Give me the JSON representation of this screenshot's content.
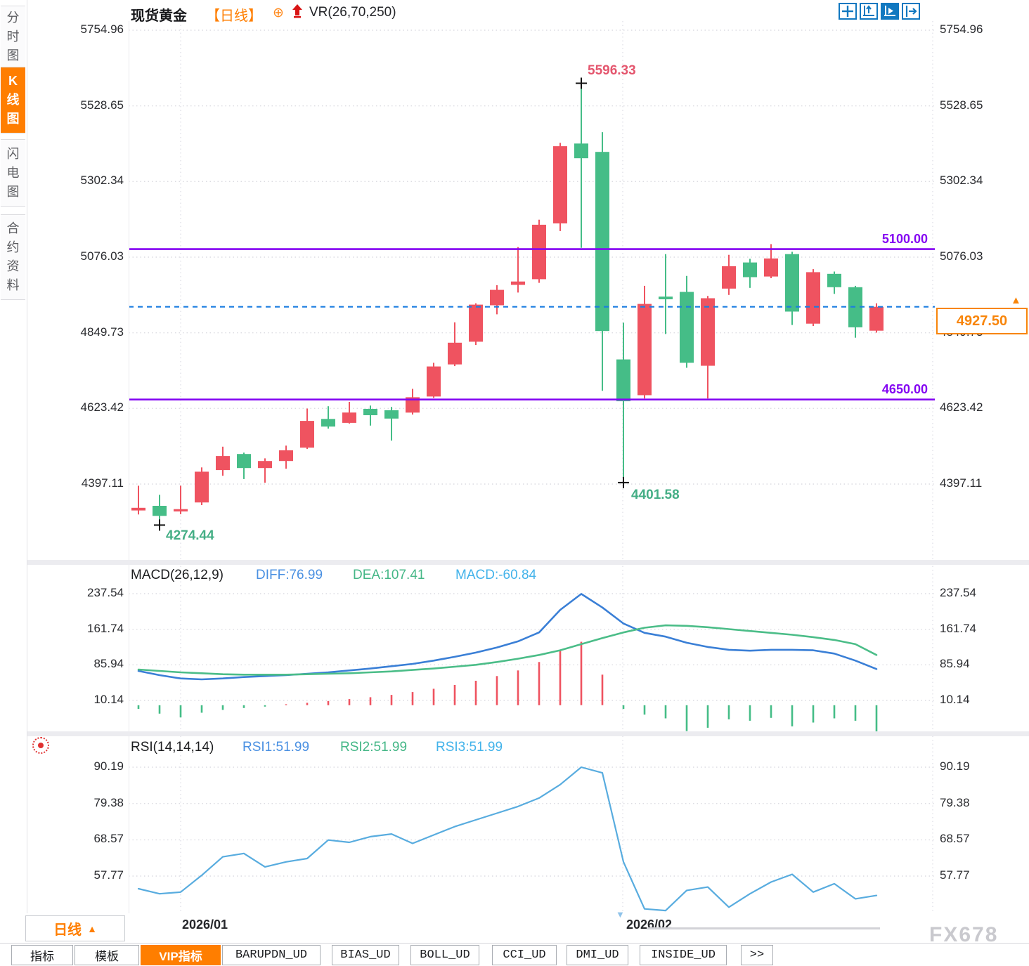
{
  "title": {
    "symbol": "现货黄金",
    "period": "【日线】",
    "overlay": "VR(26,70,250)"
  },
  "sidebar": {
    "items": [
      {
        "label": "分时图",
        "active": false
      },
      {
        "label": "K线图",
        "active": true
      },
      {
        "label": "闪电图",
        "active": false
      },
      {
        "label": "合约资料",
        "active": false
      }
    ]
  },
  "toolbar": {
    "icons": [
      "move-crosshair-icon",
      "axis-scale-icon",
      "axis-play-icon",
      "pane-export-icon"
    ]
  },
  "price_axis": {
    "labels": [
      "5754.96",
      "5528.65",
      "5302.34",
      "5076.03",
      "4849.73",
      "4623.42",
      "4397.11"
    ]
  },
  "levels": {
    "resistance": {
      "label": "5100.00",
      "price": 5100.0
    },
    "support": {
      "label": "4650.00",
      "price": 4650.0
    },
    "current": {
      "label": "4927.50",
      "price": 4927.5
    }
  },
  "annotations": {
    "high": {
      "text": "5596.33",
      "price": 5596.33
    },
    "low": {
      "text": "4274.44",
      "price": 4274.44
    },
    "swing_low": {
      "text": "4401.58",
      "price": 4401.58
    }
  },
  "macd_panel": {
    "name": "MACD(26,12,9)",
    "diff_label": "DIFF:76.99",
    "dea_label": "DEA:107.41",
    "macd_label": "MACD:-60.84",
    "axis_labels": [
      "237.54",
      "161.74",
      "85.94",
      "10.14"
    ]
  },
  "rsi_panel": {
    "name": "RSI(14,14,14)",
    "rsi1_label": "RSI1:51.99",
    "rsi2_label": "RSI2:51.99",
    "rsi3_label": "RSI3:51.99",
    "axis_labels": [
      "90.19",
      "79.38",
      "68.57",
      "57.77"
    ]
  },
  "x_axis": {
    "labels": [
      "2026/01",
      "2026/02"
    ]
  },
  "period_button": {
    "label": "日线"
  },
  "bottom_tabs": [
    {
      "label": "指标",
      "active": false,
      "cn": true
    },
    {
      "label": "模板",
      "active": false,
      "cn": true
    },
    {
      "label": "VIP指标",
      "active": true,
      "cn": true
    },
    {
      "label": "BARUPDN_UD",
      "active": false,
      "cn": false
    },
    {
      "label": "BIAS_UD",
      "active": false,
      "cn": false
    },
    {
      "label": "BOLL_UD",
      "active": false,
      "cn": false
    },
    {
      "label": "CCI_UD",
      "active": false,
      "cn": false
    },
    {
      "label": "DMI_UD",
      "active": false,
      "cn": false
    },
    {
      "label": "INSIDE_UD",
      "active": false,
      "cn": false
    },
    {
      "label": ">>",
      "active": false,
      "cn": false
    }
  ],
  "watermark": "FX678",
  "colors": {
    "up": "#ef5360",
    "down": "#45bd87",
    "level_purple": "#8405f2",
    "current_dashed_blue": "#1b7de0",
    "accent_orange": "#ff7e00",
    "diff_blue": "#3a7fd6",
    "dea_green": "#4bbd88",
    "rsi_blue": "#58acdf",
    "grid": "#dcdce2"
  },
  "chart_data": [
    {
      "type": "candlestick",
      "title": "现货黄金 日线",
      "up_color_meaning": "red=up, green=down",
      "y_ticks": [
        5754.96,
        5528.65,
        5302.34,
        5076.03,
        4849.73,
        4623.42,
        4397.11
      ],
      "x_tick_labels": [
        "2026/01",
        "2026/02"
      ],
      "levels": [
        5100.0,
        4650.0
      ],
      "current_price": 4927.5,
      "marked_high": 5596.33,
      "marked_low": 4274.44,
      "marked_swing_low": 4401.58,
      "candles_ohlc": [
        [
          4318,
          4392,
          4306,
          4326
        ],
        [
          4332,
          4365,
          4274.44,
          4302
        ],
        [
          4315,
          4392,
          4307,
          4322
        ],
        [
          4342,
          4447,
          4334,
          4434
        ],
        [
          4439,
          4509,
          4422,
          4481
        ],
        [
          4487,
          4491,
          4412,
          4445
        ],
        [
          4445,
          4474,
          4401,
          4466
        ],
        [
          4466,
          4512,
          4443,
          4498
        ],
        [
          4506,
          4623,
          4502,
          4586
        ],
        [
          4592,
          4630,
          4563,
          4569
        ],
        [
          4580,
          4643,
          4578,
          4611
        ],
        [
          4622,
          4632,
          4572,
          4603
        ],
        [
          4618,
          4628,
          4527,
          4593
        ],
        [
          4611,
          4682,
          4605,
          4657
        ],
        [
          4659,
          4760,
          4655,
          4749
        ],
        [
          4755,
          4881,
          4750,
          4820
        ],
        [
          4823,
          4938,
          4813,
          4934
        ],
        [
          4932,
          4992,
          4905,
          4978
        ],
        [
          4993,
          5106,
          4970,
          5003
        ],
        [
          5010,
          5188,
          4999,
          5173
        ],
        [
          5177,
          5418,
          5154,
          5408
        ],
        [
          5416,
          5596.33,
          5104,
          5372
        ],
        [
          5391,
          5450,
          4676,
          4855
        ],
        [
          4770,
          4880,
          4401.58,
          4645
        ],
        [
          4663,
          4990,
          4653,
          4936
        ],
        [
          4958,
          5085,
          4846,
          4950
        ],
        [
          4972,
          5020,
          4745,
          4760
        ],
        [
          4751,
          4960,
          4653,
          4953
        ],
        [
          4982,
          5083,
          4963,
          5049
        ],
        [
          5060,
          5071,
          4984,
          5016
        ],
        [
          5018,
          5115,
          5013,
          5072
        ],
        [
          5085,
          5092,
          4873,
          4913
        ],
        [
          4877,
          5040,
          4870,
          5031
        ],
        [
          5026,
          5033,
          4966,
          4986
        ],
        [
          4986,
          4990,
          4835,
          4866
        ],
        [
          4856,
          4938,
          4850,
          4927.5
        ]
      ]
    },
    {
      "type": "macd",
      "name": "MACD(26,12,9)",
      "y_ticks": [
        237.54,
        161.74,
        85.94,
        10.14
      ],
      "diff": [
        73,
        64,
        57,
        55,
        57,
        60,
        62,
        64,
        67,
        70,
        74,
        78,
        83,
        88,
        95,
        103,
        112,
        123,
        136,
        155,
        203,
        237,
        208,
        174,
        154,
        146,
        133,
        124,
        118,
        116,
        118,
        118,
        117,
        110,
        95,
        77
      ],
      "dea": [
        76,
        73,
        70,
        68,
        66,
        65,
        65,
        65,
        66,
        67,
        68,
        70,
        72,
        75,
        78,
        82,
        86,
        92,
        99,
        107,
        117,
        130,
        143,
        155,
        165,
        170,
        169,
        166,
        162,
        158,
        154,
        150,
        145,
        139,
        130,
        107
      ],
      "histogram": [
        -8,
        -18,
        -26,
        -16,
        -10,
        -6,
        -3,
        2,
        5,
        9,
        13,
        17,
        22,
        28,
        35,
        43,
        52,
        62,
        74,
        92,
        118,
        135,
        65,
        -8,
        -20,
        -28,
        -55,
        -48,
        -30,
        -33,
        -27,
        -45,
        -37,
        -28,
        -33,
        -61
      ],
      "last_values": {
        "DIFF": 76.99,
        "DEA": 107.41,
        "MACD": -60.84
      }
    },
    {
      "type": "line",
      "name": "RSI(14,14,14)",
      "y_ticks": [
        90.19,
        79.38,
        68.57,
        57.77
      ],
      "values": [
        54,
        52.5,
        53,
        58,
        63.5,
        64.5,
        60.5,
        62,
        63,
        68.5,
        67.8,
        69.5,
        70.3,
        67.5,
        70,
        72.5,
        74.5,
        76.5,
        78.5,
        81,
        85,
        90.2,
        88.5,
        62,
        48,
        47.5,
        53.5,
        54.5,
        48.5,
        52.5,
        56,
        58.3,
        53,
        55.5,
        51,
        52
      ],
      "last_values": {
        "RSI1": 51.99,
        "RSI2": 51.99,
        "RSI3": 51.99
      }
    }
  ]
}
